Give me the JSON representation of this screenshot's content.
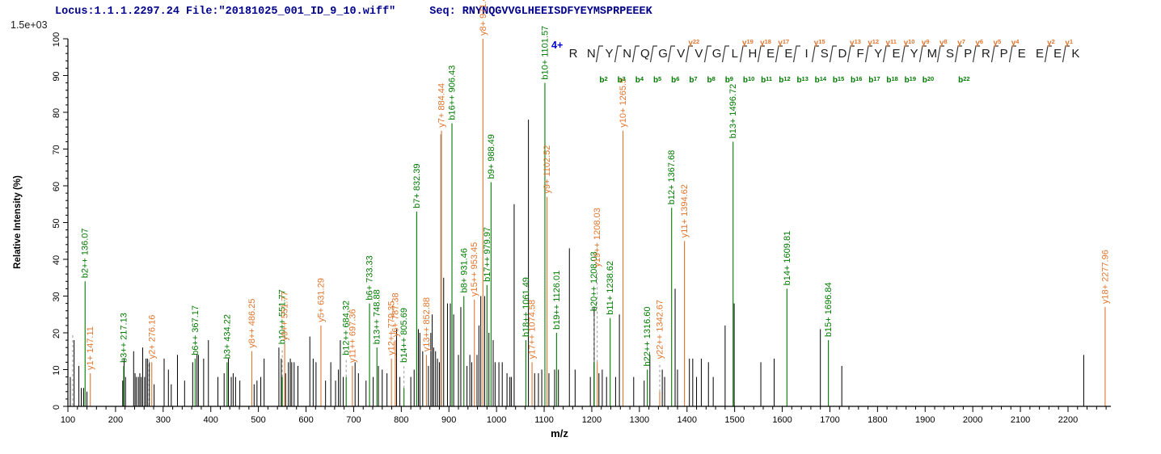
{
  "header": {
    "locus_file": "Locus:1.1.1.2297.24 File:\"20181025_001_ID_9_10.wiff\"",
    "seq_label": "Seq:",
    "sequence": "RNYNQGVVGLHEEISDFYEYMSPRPEEEK"
  },
  "colors": {
    "b_ion": "#007A00",
    "y_ion": "#E0762F",
    "unassigned": "#000000",
    "gray": "#999999",
    "header_blue": "#00008B",
    "axis": "#000000"
  },
  "sequence_panel": {
    "charge": "4+",
    "residues": "RNYNQGVVGLHEEISDFYEYMSPRPEEEK",
    "boundaries": [
      {
        "p": 2,
        "b": "b2"
      },
      {
        "p": 3,
        "b": "b3"
      },
      {
        "p": 4,
        "b": "b4"
      },
      {
        "p": 5,
        "b": "b5"
      },
      {
        "p": 6,
        "b": "b6"
      },
      {
        "p": 7,
        "b": "b7",
        "y": "y22"
      },
      {
        "p": 8,
        "b": "b8"
      },
      {
        "p": 9,
        "b": "b9"
      },
      {
        "p": 10,
        "b": "b10",
        "y": "y19"
      },
      {
        "p": 11,
        "b": "b11",
        "y": "y18"
      },
      {
        "p": 12,
        "b": "b12",
        "y": "y17"
      },
      {
        "p": 13,
        "b": "b13"
      },
      {
        "p": 14,
        "b": "b14",
        "y": "y15"
      },
      {
        "p": 15,
        "b": "b15"
      },
      {
        "p": 16,
        "b": "b16",
        "y": "y13"
      },
      {
        "p": 17,
        "b": "b17",
        "y": "y12"
      },
      {
        "p": 18,
        "b": "b18",
        "y": "y11"
      },
      {
        "p": 19,
        "b": "b19",
        "y": "y10"
      },
      {
        "p": 20,
        "b": "b20",
        "y": "y9"
      },
      {
        "p": 21,
        "y": "y8"
      },
      {
        "p": 22,
        "b": "b22",
        "y": "y7"
      },
      {
        "p": 23,
        "y": "y6"
      },
      {
        "p": 24,
        "y": "y5"
      },
      {
        "p": 25,
        "y": "y4"
      },
      {
        "p": 27,
        "y": "y2"
      },
      {
        "p": 28,
        "y": "y1"
      }
    ]
  },
  "chart_data": {
    "type": "bar",
    "subtype": "ms2-fragmentation-spectrum",
    "title": "",
    "xlabel": "m/z",
    "ylabel": "Relative  Intensity (%)",
    "y_scale_note": "1.5e+03",
    "xlim": [
      100,
      2290
    ],
    "ylim": [
      0,
      100
    ],
    "x_tick_step": 100,
    "x_minor_step": 20,
    "y_tick_step": 10,
    "y_minor_step": 2,
    "x_tick_labels": [
      100,
      200,
      300,
      400,
      500,
      600,
      700,
      800,
      900,
      1000,
      1100,
      1200,
      1300,
      1400,
      1500,
      1600,
      1700,
      1800,
      1900,
      2000,
      2100,
      2200
    ],
    "y_tick_labels": [
      0,
      10,
      20,
      30,
      40,
      50,
      60,
      70,
      80,
      90,
      100
    ],
    "legend": "none",
    "grid": false,
    "series": [
      {
        "name": "b ions",
        "color": "#007A00",
        "peaks": [
          {
            "label": "b2++ 136.07",
            "mz": 136.07,
            "pct": 34
          },
          {
            "label": "b3++ 217.13",
            "mz": 217.13,
            "pct": 11
          },
          {
            "label": "b6++ 367.17",
            "mz": 367.17,
            "pct": 13
          },
          {
            "label": "b3+ 434.22",
            "mz": 434.22,
            "pct": 12
          },
          {
            "label": "b10++ 551.77",
            "mz": 551.77,
            "pct": 8,
            "dash_to": 16,
            "xoff": -1
          },
          {
            "label": "b12++ 684.32",
            "mz": 684.32,
            "pct": 8,
            "dash_to": 13
          },
          {
            "label": "b6+ 733.33",
            "mz": 733.33,
            "pct": 28
          },
          {
            "label": "b13++ 748.88",
            "mz": 748.88,
            "pct": 16
          },
          {
            "label": "b14++ 805.69",
            "mz": 805.69,
            "pct": 5,
            "dash_to": 11
          },
          {
            "label": "b7+ 832.39",
            "mz": 832.39,
            "pct": 53
          },
          {
            "label": "b16++ 906.43",
            "mz": 906.43,
            "pct": 77
          },
          {
            "label": "b8+ 931.46",
            "mz": 931.46,
            "pct": 30
          },
          {
            "label": "b17++ 979.97",
            "mz": 979.97,
            "pct": 33
          },
          {
            "label": "b9+ 988.49",
            "mz": 988.49,
            "pct": 61
          },
          {
            "label": "b18++ 1061.49",
            "mz": 1061.49,
            "pct": 18
          },
          {
            "label": "b10+ 1101.57",
            "mz": 1101.57,
            "pct": 88
          },
          {
            "label": "b19++ 1126.01",
            "mz": 1126.01,
            "pct": 20
          },
          {
            "label": "b20++ 1208.03",
            "mz": 1208.03,
            "pct": 12,
            "dash_to": 25,
            "xoff": -2
          },
          {
            "label": "b11+ 1238.62",
            "mz": 1238.62,
            "pct": 24
          },
          {
            "label": "b22++ 1316.60",
            "mz": 1316.6,
            "pct": 10
          },
          {
            "label": "b12+ 1367.68",
            "mz": 1367.68,
            "pct": 54
          },
          {
            "label": "b13+ 1496.72",
            "mz": 1496.72,
            "pct": 72
          },
          {
            "label": "b14+ 1609.81",
            "mz": 1609.81,
            "pct": 32
          },
          {
            "label": "b15+ 1696.84",
            "mz": 1696.84,
            "pct": 18
          }
        ]
      },
      {
        "name": "y ions",
        "color": "#E0762F",
        "peaks": [
          {
            "label": "y1+ 147.11",
            "mz": 147.11,
            "pct": 9
          },
          {
            "label": "y2+ 276.16",
            "mz": 276.16,
            "pct": 12
          },
          {
            "label": "y8++ 486.25",
            "mz": 486.25,
            "pct": 15
          },
          {
            "label": "y9++ 551.77",
            "mz": 551.77,
            "pct": 17,
            "xoff": 2
          },
          {
            "label": "y5+ 631.29",
            "mz": 631.29,
            "pct": 22
          },
          {
            "label": "y11++ 697.36",
            "mz": 697.36,
            "pct": 11
          },
          {
            "label": "y12++ 779.35",
            "mz": 779.35,
            "pct": 13
          },
          {
            "label": "y6+ 787.38",
            "mz": 787.38,
            "pct": 18
          },
          {
            "label": "y13++ 852.88",
            "mz": 852.88,
            "pct": 14
          },
          {
            "label": "y7+ 884.44",
            "mz": 884.44,
            "pct": 75
          },
          {
            "label": "y15++ 953.45",
            "mz": 953.45,
            "pct": 29
          },
          {
            "label": "y8+ 971.47",
            "mz": 971.47,
            "pct": 100
          },
          {
            "label": "y17++ 1074.58",
            "mz": 1074.58,
            "pct": 12
          },
          {
            "label": "y9+ 1102.52",
            "mz": 1102.52,
            "pct": 57,
            "xoff": 2
          },
          {
            "label": "y19++ 1208.03",
            "mz": 1208.03,
            "pct": 12,
            "dash_to": 37,
            "xoff": 2
          },
          {
            "label": "y10+ 1265.5",
            "mz": 1265.5,
            "pct": 75
          },
          {
            "label": "y22++ 1342.67",
            "mz": 1342.67,
            "pct": 4,
            "dash_to": 12
          },
          {
            "label": "y11+ 1394.62",
            "mz": 1394.62,
            "pct": 45
          },
          {
            "label": "y18+ 2277.96",
            "mz": 2277.96,
            "pct": 27
          }
        ]
      },
      {
        "name": "unassigned",
        "color": "#000000",
        "peaks": [
          [
            105,
            8
          ],
          [
            113,
            18
          ],
          [
            123,
            11
          ],
          [
            128,
            5
          ],
          [
            133,
            5
          ],
          [
            140,
            4
          ],
          [
            215,
            7
          ],
          [
            218,
            13
          ],
          [
            221,
            8
          ],
          [
            238,
            15
          ],
          [
            241,
            9
          ],
          [
            244,
            8
          ],
          [
            248,
            8
          ],
          [
            251,
            9
          ],
          [
            254,
            8
          ],
          [
            257,
            16
          ],
          [
            261,
            8
          ],
          [
            264,
            13
          ],
          [
            267,
            13
          ],
          [
            271,
            12
          ],
          [
            281,
            6
          ],
          [
            302,
            13
          ],
          [
            311,
            10
          ],
          [
            317,
            6
          ],
          [
            330,
            14
          ],
          [
            345,
            7
          ],
          [
            362,
            12
          ],
          [
            371,
            14
          ],
          [
            374,
            14
          ],
          [
            385,
            13
          ],
          [
            395,
            18
          ],
          [
            415,
            8
          ],
          [
            428,
            9
          ],
          [
            437,
            13
          ],
          [
            443,
            8
          ],
          [
            447,
            9
          ],
          [
            452,
            8
          ],
          [
            461,
            7
          ],
          [
            491,
            6
          ],
          [
            497,
            7
          ],
          [
            505,
            8
          ],
          [
            512,
            13
          ],
          [
            543,
            16
          ],
          [
            548,
            13
          ],
          [
            557,
            9
          ],
          [
            563,
            12
          ],
          [
            567,
            13
          ],
          [
            570,
            12
          ],
          [
            575,
            12
          ],
          [
            583,
            11
          ],
          [
            608,
            19
          ],
          [
            615,
            13
          ],
          [
            621,
            12
          ],
          [
            641,
            7
          ],
          [
            652,
            12
          ],
          [
            662,
            7
          ],
          [
            668,
            10
          ],
          [
            672,
            18
          ],
          [
            678,
            8
          ],
          [
            703,
            12
          ],
          [
            710,
            9
          ],
          [
            726,
            7
          ],
          [
            741,
            8
          ],
          [
            752,
            11
          ],
          [
            760,
            10
          ],
          [
            770,
            9
          ],
          [
            790,
            21
          ],
          [
            797,
            8
          ],
          [
            820,
            8
          ],
          [
            827,
            10
          ],
          [
            836,
            21
          ],
          [
            839,
            20
          ],
          [
            845,
            15
          ],
          [
            857,
            11
          ],
          [
            862,
            20
          ],
          [
            865,
            25
          ],
          [
            868,
            16
          ],
          [
            872,
            15
          ],
          [
            876,
            13
          ],
          [
            880,
            12
          ],
          [
            889,
            35
          ],
          [
            897,
            28
          ],
          [
            903,
            28
          ],
          [
            910,
            25
          ],
          [
            920,
            14
          ],
          [
            925,
            27
          ],
          [
            938,
            11
          ],
          [
            944,
            14
          ],
          [
            948,
            12
          ],
          [
            959,
            14
          ],
          [
            963,
            22
          ],
          [
            967,
            30
          ],
          [
            975,
            30
          ],
          [
            984,
            20
          ],
          [
            993,
            18
          ],
          [
            997,
            12
          ],
          [
            1005,
            12
          ],
          [
            1012,
            12
          ],
          [
            1022,
            9
          ],
          [
            1028,
            8
          ],
          [
            1031,
            8
          ],
          [
            1037,
            55
          ],
          [
            1067,
            78
          ],
          [
            1080,
            9
          ],
          [
            1088,
            9
          ],
          [
            1095,
            10
          ],
          [
            1110,
            9
          ],
          [
            1122,
            10
          ],
          [
            1130,
            10
          ],
          [
            1153,
            43
          ],
          [
            1165,
            10
          ],
          [
            1197,
            8
          ],
          [
            1205,
            27
          ],
          [
            1215,
            9
          ],
          [
            1222,
            10
          ],
          [
            1231,
            8
          ],
          [
            1250,
            8
          ],
          [
            1258,
            25
          ],
          [
            1288,
            8
          ],
          [
            1310,
            7
          ],
          [
            1322,
            14
          ],
          [
            1348,
            10
          ],
          [
            1353,
            8
          ],
          [
            1375,
            32
          ],
          [
            1380,
            10
          ],
          [
            1405,
            13
          ],
          [
            1412,
            13
          ],
          [
            1420,
            8
          ],
          [
            1430,
            13
          ],
          [
            1445,
            12
          ],
          [
            1455,
            8
          ],
          [
            1480,
            22
          ],
          [
            1499,
            28
          ],
          [
            1555,
            12
          ],
          [
            1583,
            13
          ],
          [
            1680,
            21
          ],
          [
            1725,
            11
          ],
          [
            2233,
            14
          ]
        ]
      }
    ],
    "gray_dashed_markers": [
      [
        110,
        20
      ],
      [
        270,
        13
      ]
    ],
    "gray_peaks": [
      [
        882.8,
        74
      ]
    ]
  }
}
